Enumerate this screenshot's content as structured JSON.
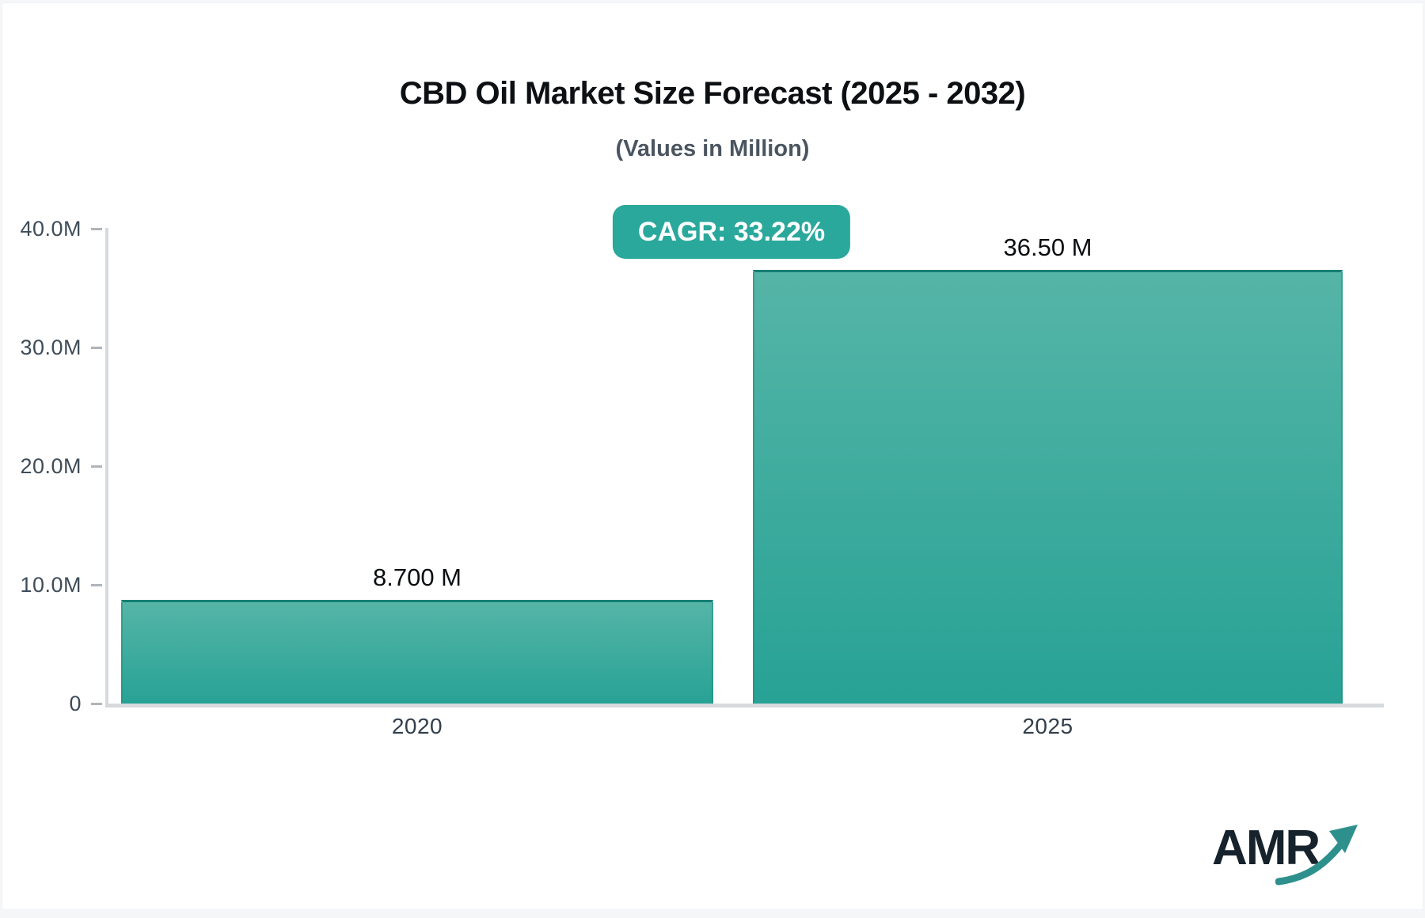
{
  "page": {
    "background": "#f4f6f7",
    "card_background": "#ffffff"
  },
  "header": {
    "title": "CBD Oil Market Size Forecast (2025 - 2032)",
    "subtitle": "(Values in Million)"
  },
  "badge": {
    "label": "CAGR: 33.22%",
    "background": "#2aa89c",
    "text_color": "#ffffff"
  },
  "chart_data": {
    "type": "bar",
    "title": "CBD Oil Market Size Forecast (2025 - 2032)",
    "subtitle": "(Values in Million)",
    "unit": "Million",
    "cagr_percent": 33.22,
    "categories": [
      "2020",
      "2025"
    ],
    "values": [
      8.7,
      36.5
    ],
    "value_labels": [
      "8.700 M",
      "36.50 M"
    ],
    "ylim": [
      0,
      40
    ],
    "y_ticks": [
      {
        "label": "0",
        "value": 0
      },
      {
        "label": "10.0M",
        "value": 10
      },
      {
        "label": "20.0M",
        "value": 20
      },
      {
        "label": "30.0M",
        "value": 30
      },
      {
        "label": "40.0M",
        "value": 40
      }
    ],
    "grid": false,
    "legend": false,
    "bar_color_top": "#55b5a7",
    "bar_color_bottom": "#27a295",
    "bar_border_color": "#157f74",
    "axis_color": "#d6dadd",
    "tick_color": "#aeb5bb",
    "y_label_color": "#3f4c59",
    "x_label_color": "#323e4b"
  },
  "logo": {
    "text": "AMR",
    "arrow_color": "#2e908c",
    "text_color": "#16222c"
  }
}
